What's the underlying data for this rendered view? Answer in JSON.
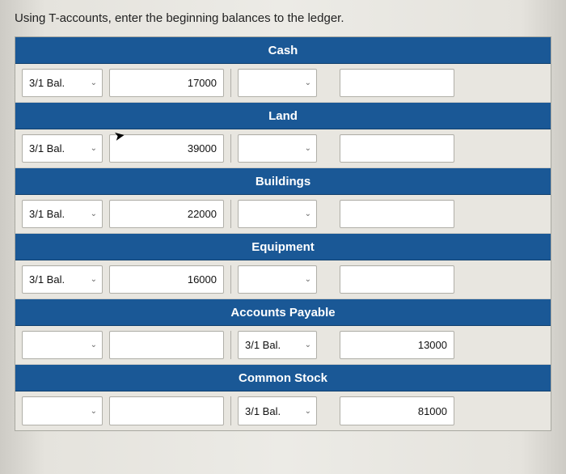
{
  "instruction": "Using T-accounts, enter the beginning balances to the ledger.",
  "sel_option": "3/1 Bal.",
  "colors": {
    "header_bg": "#1a5896",
    "header_text": "#ffffff",
    "page_bg": "#e8e6e0",
    "cell_bg": "#ffffff",
    "cell_border": "#b0afa8"
  },
  "accounts": [
    {
      "name": "Cash",
      "debit_sel": "3/1 Bal.",
      "debit_amt": "17000",
      "credit_sel": "",
      "credit_amt": ""
    },
    {
      "name": "Land",
      "debit_sel": "3/1 Bal.",
      "debit_amt": "39000",
      "credit_sel": "",
      "credit_amt": ""
    },
    {
      "name": "Buildings",
      "debit_sel": "3/1 Bal.",
      "debit_amt": "22000",
      "credit_sel": "",
      "credit_amt": ""
    },
    {
      "name": "Equipment",
      "debit_sel": "3/1 Bal.",
      "debit_amt": "16000",
      "credit_sel": "",
      "credit_amt": ""
    },
    {
      "name": "Accounts Payable",
      "debit_sel": "",
      "debit_amt": "",
      "credit_sel": "3/1 Bal.",
      "credit_amt": "13000"
    },
    {
      "name": "Common Stock",
      "debit_sel": "",
      "debit_amt": "",
      "credit_sel": "3/1 Bal.",
      "credit_amt": "81000"
    }
  ]
}
